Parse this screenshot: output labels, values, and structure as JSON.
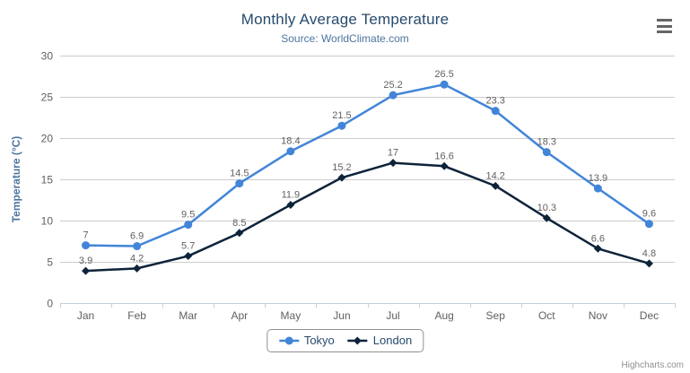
{
  "chart": {
    "credits": "Highcharts.com",
    "menu_icon": "hamburger-icon"
  },
  "theme": {
    "background": "#FFFFFF",
    "title_color": "#274b6d",
    "subtitle_color": "#4d759e",
    "axis_title_color": "#4d759e",
    "axis_label_color": "#606060",
    "data_label_color": "#606060",
    "grid_color": "#CCCCCC",
    "axis_line_color": "#C0D0E0",
    "legend_border_color": "#909090",
    "legend_text_color": "#274b6d",
    "credits_color": "#909090",
    "menu_icon_color": "#666666"
  },
  "chart_data": {
    "type": "line",
    "title": "Monthly Average Temperature",
    "subtitle": "Source: WorldClimate.com",
    "categories": [
      "Jan",
      "Feb",
      "Mar",
      "Apr",
      "May",
      "Jun",
      "Jul",
      "Aug",
      "Sep",
      "Oct",
      "Nov",
      "Dec"
    ],
    "series": [
      {
        "name": "Tokyo",
        "color": "#4285d8",
        "marker": "circle",
        "values": [
          7,
          6.9,
          9.5,
          14.5,
          18.4,
          21.5,
          25.2,
          26.5,
          23.3,
          18.3,
          13.9,
          9.6
        ]
      },
      {
        "name": "London",
        "color": "#0d233a",
        "marker": "diamond",
        "values": [
          3.9,
          4.2,
          5.7,
          8.5,
          11.9,
          15.2,
          17,
          16.6,
          14.2,
          10.3,
          6.6,
          4.8
        ]
      }
    ],
    "xlabel": "",
    "ylabel": "Temperature (°C)",
    "ylim": [
      0,
      30
    ],
    "yticks": [
      0,
      5,
      10,
      15,
      20,
      25,
      30
    ],
    "grid": true,
    "data_labels": true,
    "legend_position": "bottom"
  }
}
